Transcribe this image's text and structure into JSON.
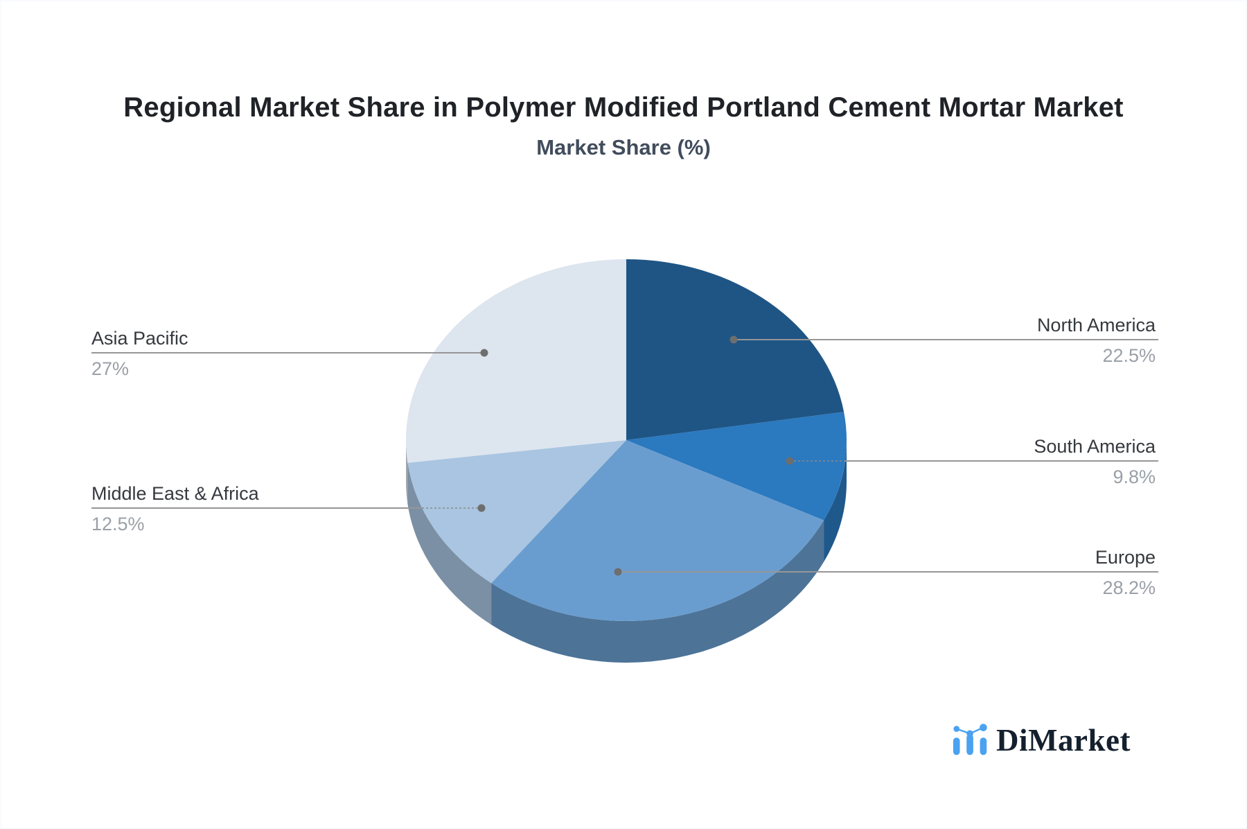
{
  "title": "Regional Market Share in Polymer Modified Portland Cement Mortar Market",
  "subtitle": "Market Share (%)",
  "chart_data": {
    "type": "pie",
    "title": "Regional Market Share in Polymer Modified Portland Cement Mortar Market",
    "subtitle": "Market Share (%)",
    "unit": "%",
    "labels": [
      "North America",
      "South America",
      "Europe",
      "Middle East & Africa",
      "Asia Pacific"
    ],
    "values": [
      22.5,
      9.8,
      28.2,
      12.5,
      27
    ],
    "value_labels": [
      "22.5%",
      "9.8%",
      "28.2%",
      "12.5%",
      "27%"
    ],
    "colors": [
      "#1e5585",
      "#2b79bf",
      "#6a9dcf",
      "#a9c5e1",
      "#dde5ef"
    ],
    "start_angle_deg": 0,
    "clockwise": true,
    "three_d": true,
    "legend": "none",
    "label_style": "leader-lines",
    "label_sides": [
      "right",
      "right",
      "right",
      "left",
      "left"
    ]
  },
  "logo": {
    "text": "DiMarket",
    "icon": "bar-line-chart-icon",
    "icon_color": "#4aa2f1",
    "text_color": "#14202e"
  }
}
